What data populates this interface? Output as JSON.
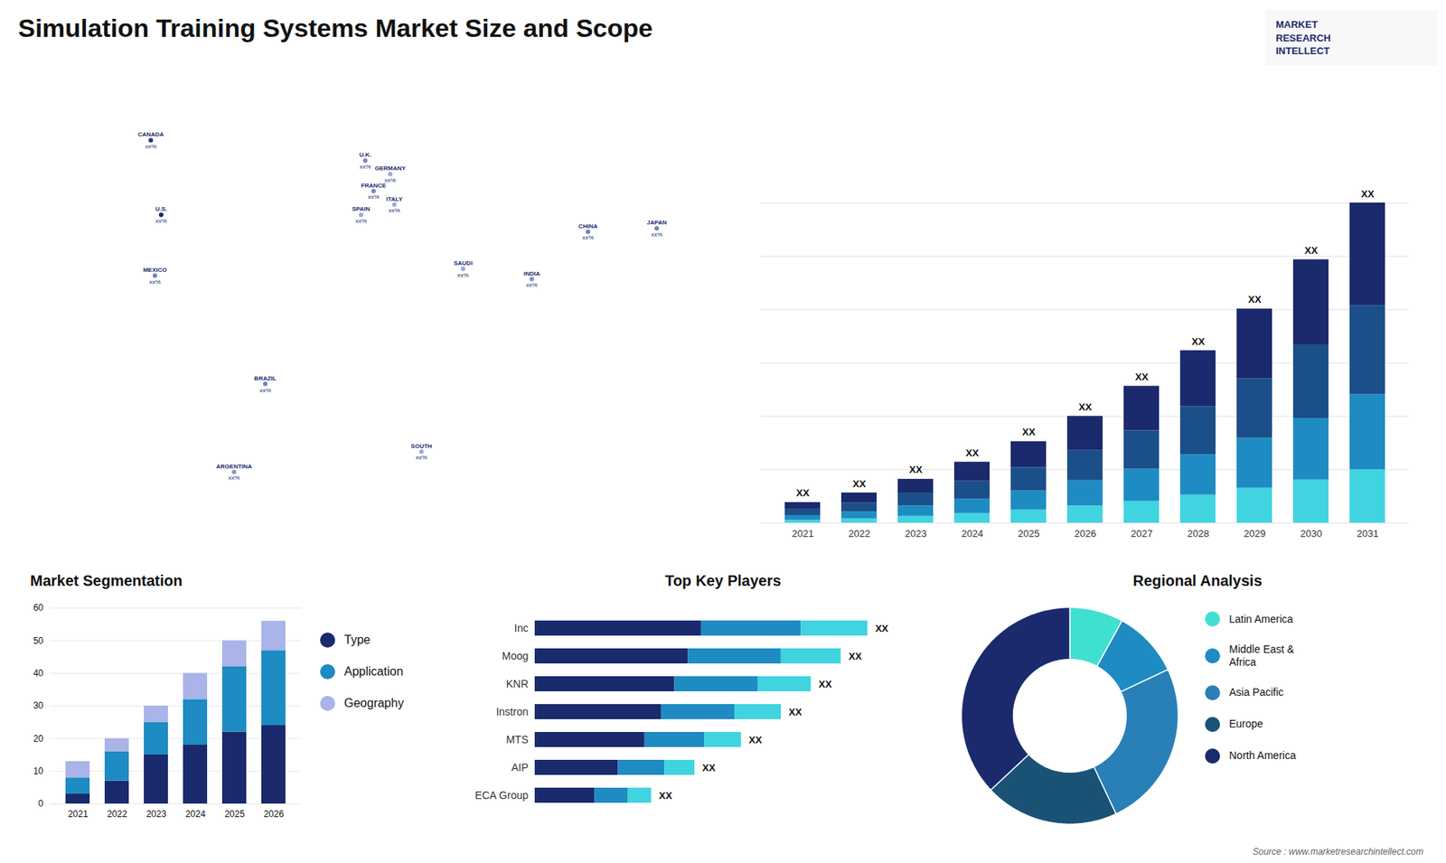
{
  "title": "Simulation Training Systems Market Size and Scope",
  "annotations": [
    "MARKET",
    "RESEARCH",
    "INTELLECT",
    "Source : www.marketresearchintellect.com"
  ],
  "chart_data": [
    {
      "type": "map",
      "categories": [
        "CANADA",
        "U.S.",
        "MEXICO",
        "BRAZIL",
        "ARGENTINA",
        "U.K.",
        "FRANCE",
        "GERMANY",
        "SPAIN",
        "ITALY",
        "SAUDI",
        "SOUTH",
        "CHINA",
        "INDIA",
        "JAPAN"
      ],
      "x": [
        -105,
        -100,
        -103,
        -50,
        -65,
        -2,
        2,
        10,
        -4,
        12,
        45,
        25,
        105,
        78,
        138
      ],
      "values": [
        62,
        40,
        22,
        -10,
        -36,
        56,
        47,
        52,
        40,
        43,
        24,
        -30,
        35,
        21,
        36
      ],
      "annotations": [
        "xx%",
        "xx%",
        "xx%",
        "xx%",
        "xx%",
        "xx%",
        "xx%",
        "xx%",
        "xx%",
        "xx%",
        "xx%",
        "xx%",
        "xx%",
        "xx%",
        "xx%"
      ],
      "colors": [
        "#1e3a8a",
        "#1a2a6c",
        "#6b82c9",
        "#6b82c9",
        "#8899cc",
        "#7788cc",
        "#7788cc",
        "#9aabdd",
        "#9aabdd",
        "#9aabdd",
        "#9aabdd",
        "#9aabdd",
        "#6688bb",
        "#7799cc",
        "#6688bb"
      ],
      "xlim": [
        -170,
        170
      ],
      "ylim": [
        -58,
        80
      ],
      "tick_labels": false
    },
    {
      "type": "bar",
      "categories": [
        "2021",
        "2022",
        "2023",
        "2024",
        "2025",
        "2026",
        "2027",
        "2028",
        "2029",
        "2030",
        "2031"
      ],
      "series": [
        {
          "color": "#40d4e0",
          "values": [
            0.4,
            0.6,
            1.0,
            1.4,
            1.9,
            2.5,
            3.2,
            4.1,
            5.1,
            6.3,
            7.8
          ]
        },
        {
          "color": "#1e8bc3",
          "values": [
            0.7,
            1.0,
            1.5,
            2.1,
            2.8,
            3.7,
            4.7,
            5.9,
            7.3,
            9.0,
            11.0
          ]
        },
        {
          "color": "#1b4f8a",
          "values": [
            0.9,
            1.3,
            1.9,
            2.6,
            3.4,
            4.4,
            5.6,
            7.0,
            8.7,
            10.7,
            13.0
          ]
        },
        {
          "color": "#1a2a6c",
          "values": [
            1.0,
            1.5,
            2.0,
            2.8,
            3.8,
            5.0,
            6.5,
            8.2,
            10.2,
            12.5,
            15.0
          ]
        }
      ],
      "annotations": [
        "XX",
        "XX",
        "XX",
        "XX",
        "XX",
        "XX",
        "XX",
        "XX",
        "XX",
        "XX",
        "XX"
      ],
      "stacked": true,
      "ylim": [
        0,
        59.904
      ],
      "yticks": [
        0,
        7.8,
        15.6,
        23.4,
        31.2,
        39,
        46.8
      ],
      "grid": true,
      "tick_labels": "x"
    },
    {
      "type": "bar",
      "title": "Market Segmentation",
      "categories": [
        "2021",
        "2022",
        "2023",
        "2024",
        "2025",
        "2026"
      ],
      "series": [
        {
          "name": "Type",
          "color": "#1a2a6c",
          "values": [
            3,
            7,
            15,
            18,
            22,
            24
          ]
        },
        {
          "name": "Application",
          "color": "#1e8bc3",
          "values": [
            5,
            9,
            10,
            14,
            20,
            23
          ]
        },
        {
          "name": "Geography",
          "color": "#aab4e8",
          "values": [
            5,
            4,
            5,
            8,
            8,
            9
          ]
        }
      ],
      "stacked": true,
      "ylim": [
        0,
        60
      ],
      "yticks": [
        0,
        10,
        20,
        30,
        40,
        50,
        60
      ],
      "grid": true,
      "legend": "right"
    },
    {
      "type": "bar",
      "title": "Top Key Players",
      "orientation": "horizontal",
      "categories": [
        "Inc",
        "Moog",
        "KNR",
        "Instron",
        "MTS",
        "AIP",
        "ECA Group"
      ],
      "series": [
        {
          "color": "#1a2a6c",
          "values": [
            5.0,
            4.6,
            4.2,
            3.8,
            3.3,
            2.5,
            1.8
          ]
        },
        {
          "color": "#1e8bc3",
          "values": [
            3.0,
            2.8,
            2.5,
            2.2,
            1.8,
            1.4,
            1.0
          ]
        },
        {
          "color": "#40d4e0",
          "values": [
            2.0,
            1.8,
            1.6,
            1.4,
            1.1,
            0.9,
            0.7
          ]
        }
      ],
      "annotations": [
        "XX",
        "XX",
        "XX",
        "XX",
        "XX",
        "XX",
        "XX"
      ],
      "stacked": true,
      "xlim": [
        0,
        12
      ],
      "tick_labels": "y"
    },
    {
      "type": "donut",
      "title": "Regional Analysis",
      "categories": [
        "Latin America",
        "Middle East &\nAfrica",
        "Asia Pacific",
        "Europe",
        "North America"
      ],
      "values": [
        8,
        10,
        25,
        20,
        37
      ],
      "colors": [
        "#40e0d0",
        "#1e8bc3",
        "#2980b9",
        "#1a5276",
        "#1a2a6c"
      ],
      "legend": "right"
    }
  ]
}
